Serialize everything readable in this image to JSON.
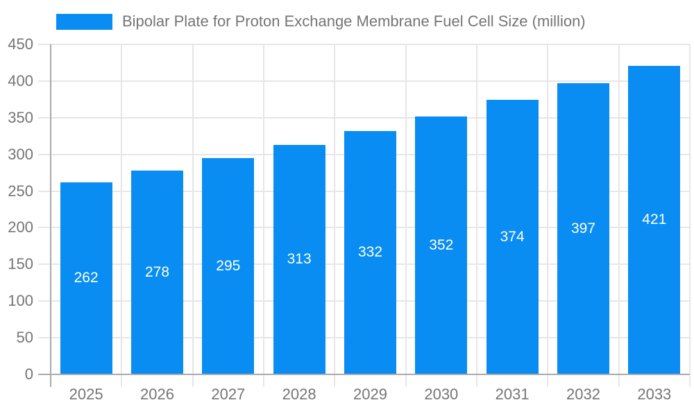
{
  "legend": {
    "label": "Bipolar Plate for Proton Exchange Membrane Fuel Cell Size (million)"
  },
  "colors": {
    "bar": "#0a8df2",
    "axis_line": "#a9a9a9",
    "gridline": "#e6e6e6",
    "axis_text": "#757575",
    "value_label_text": "#ffffff",
    "background": "#ffffff"
  },
  "chart_data": {
    "type": "bar",
    "title": "Bipolar Plate for Proton Exchange Membrane Fuel Cell Size (million)",
    "categories": [
      "2025",
      "2026",
      "2027",
      "2028",
      "2029",
      "2030",
      "2031",
      "2032",
      "2033"
    ],
    "values": [
      262,
      278,
      295,
      313,
      332,
      352,
      374,
      397,
      421
    ],
    "xlabel": "",
    "ylabel": "",
    "ylim": [
      0,
      450
    ],
    "ytick_step": 50,
    "grid": true,
    "legend_position": "top",
    "value_labels": "inside-center"
  }
}
